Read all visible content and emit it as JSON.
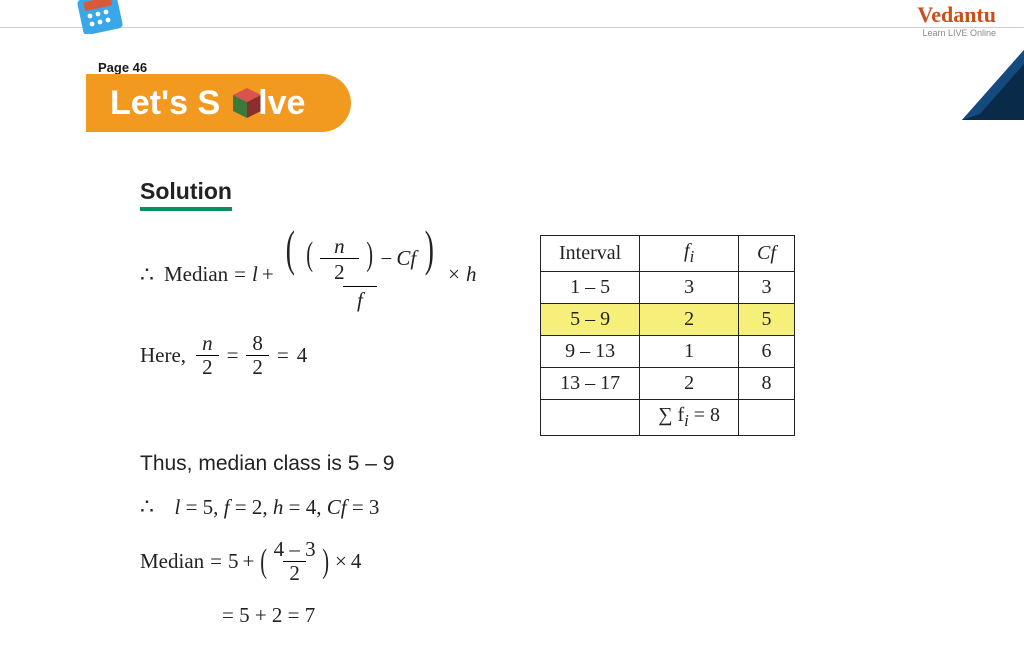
{
  "brand": {
    "name": "Vedantu",
    "tagline": "Learn LIVE Online",
    "color": "#c94f1d"
  },
  "page_label": "Page 46",
  "pill": {
    "text_left": "Let's S",
    "text_right": "lve",
    "bg": "#f29a1f"
  },
  "corner": {
    "fill": "#0f3b66",
    "shadow": "#0a2a49"
  },
  "solution": {
    "heading": "Solution",
    "underline_color": "#0b8f62",
    "formula_label": "Median",
    "here_label": "Here,",
    "n_over_2_eq": "4",
    "eight_over_two": "8",
    "median_class_text": "Thus, median class is 5 – 9",
    "params_text": "l = 5, f = 2, h = 4, Cf = 3",
    "calc_num": "4 – 3",
    "calc_den": "2",
    "calc_h": "4",
    "calc_l": "5",
    "result_line": "= 5 + 2 = 7"
  },
  "table": {
    "headers": [
      "Interval",
      "f",
      "Cf"
    ],
    "f_sub": "i",
    "rows": [
      {
        "interval": "1 – 5",
        "f": "3",
        "cf": "3",
        "hl": false
      },
      {
        "interval": "5 – 9",
        "f": "2",
        "cf": "5",
        "hl": true
      },
      {
        "interval": "9 – 13",
        "f": "1",
        "cf": "6",
        "hl": false
      },
      {
        "interval": "13 – 17",
        "f": "2",
        "cf": "8",
        "hl": false
      }
    ],
    "sum_label": "∑ f",
    "sum_sub": "i",
    "sum_val": "= 8",
    "highlight_color": "#f6f07a"
  }
}
